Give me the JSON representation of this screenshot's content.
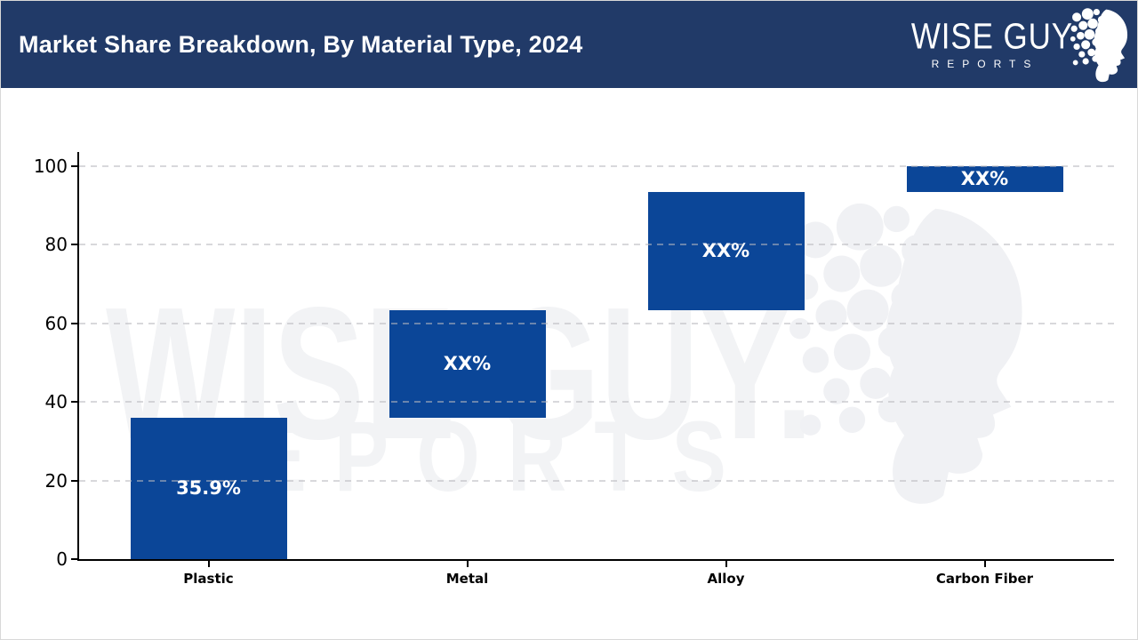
{
  "header": {
    "title": "Market Share Breakdown, By Material Type, 2024",
    "logo": {
      "line1": "WISE GUY",
      "line2": "REPORTS"
    }
  },
  "watermark": {
    "line1": "WISE GUY.",
    "line2": "REPORTS"
  },
  "colors": {
    "header_bg": "#213a68",
    "bar_blue": "#0b4698",
    "bar_label_text": "#ffffff",
    "axis_black": "#000000",
    "gridline_gray": "#d9d9d9",
    "watermark_gray": "#f2f3f5"
  },
  "chart_data": {
    "type": "bar",
    "subtype": "waterfall",
    "title": "Market Share Breakdown, By Material Type, 2024",
    "categories": [
      "Plastic",
      "Metal",
      "Alloy",
      "Carbon Fiber"
    ],
    "bars": [
      {
        "category": "Plastic",
        "start": 0,
        "end": 35.9,
        "label": "35.9%"
      },
      {
        "category": "Metal",
        "start": 35.9,
        "end": 63.3,
        "label": "XX%"
      },
      {
        "category": "Alloy",
        "start": 63.3,
        "end": 93.4,
        "label": "XX%"
      },
      {
        "category": "Carbon Fiber",
        "start": 93.4,
        "end": 100,
        "label": "XX%"
      }
    ],
    "xlabel": "",
    "ylabel": "",
    "ylim": [
      0,
      100
    ],
    "yticks": [
      0,
      20,
      40,
      60,
      80,
      100
    ],
    "grid": "horizontal-dashed, drawn over bars",
    "legend": "none",
    "bar_color": "#0b4698"
  }
}
